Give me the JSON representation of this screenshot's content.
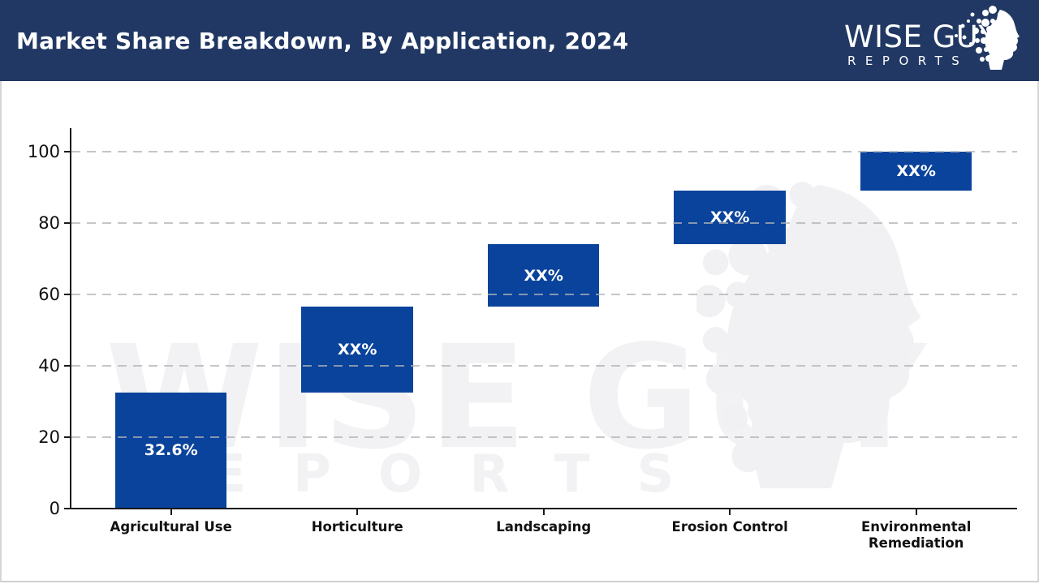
{
  "header": {
    "title": "Market Share Breakdown, By Application, 2024",
    "logo": {
      "line1": "WISE GUY",
      "line2": "REPORTS"
    }
  },
  "watermark": {
    "line1": "WISE GUY",
    "line2": "REPORTS"
  },
  "chart_data": {
    "type": "bar",
    "subtype": "floating-waterfall",
    "title": "Market Share Breakdown, By Application, 2024",
    "categories": [
      "Agricultural Use",
      "Horticulture",
      "Landscaping",
      "Erosion Control",
      "Environmental Remediation"
    ],
    "series": [
      {
        "name": "Agricultural Use",
        "start": 0,
        "end": 32.6,
        "label": "32.6%"
      },
      {
        "name": "Horticulture",
        "start": 32.6,
        "end": 56.5,
        "label": "XX%"
      },
      {
        "name": "Landscaping",
        "start": 56.5,
        "end": 74.0,
        "label": "XX%"
      },
      {
        "name": "Erosion Control",
        "start": 74.0,
        "end": 89.0,
        "label": "XX%"
      },
      {
        "name": "Environmental Remediation",
        "start": 89.0,
        "end": 100.0,
        "label": "XX%"
      }
    ],
    "yticks": [
      0,
      20,
      40,
      60,
      80,
      100
    ],
    "ylim": [
      0,
      106
    ],
    "xlabel": "",
    "ylabel": "",
    "grid": "dashed horizontal",
    "legend": "none",
    "bar_color": "#09439b",
    "bar_label_color": "#ffffff",
    "header_color": "#213864",
    "axis_color": "#1a1a1a"
  }
}
